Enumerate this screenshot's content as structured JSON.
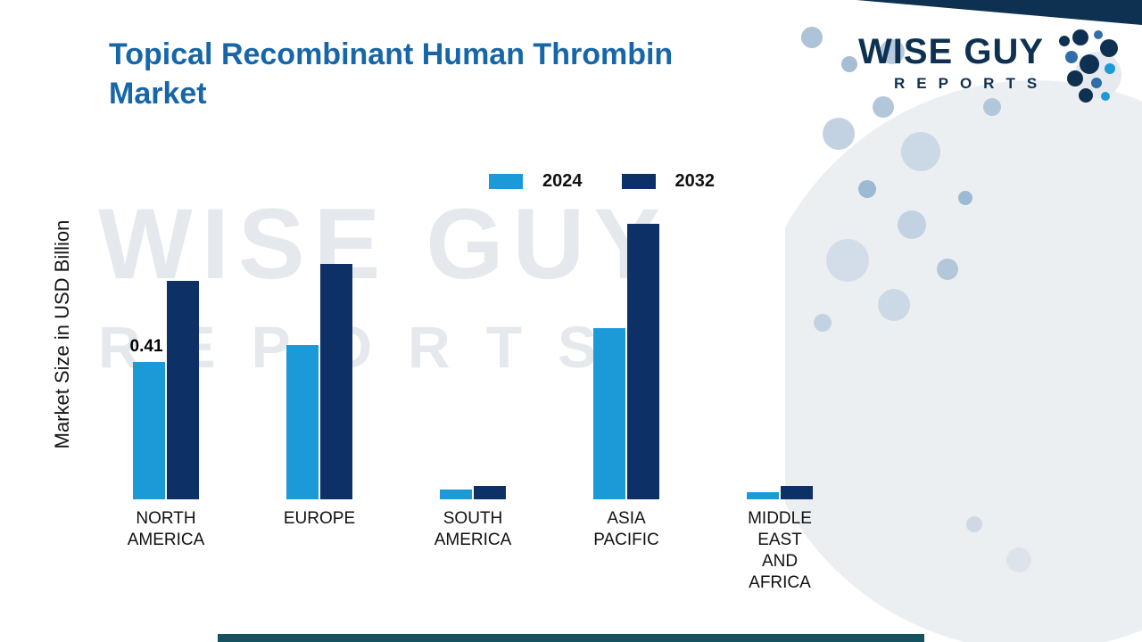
{
  "header": {
    "title": "Topical Recombinant Human Thrombin Market",
    "title_lines": [
      "Topical Recombinant Human Thrombin",
      "Market"
    ]
  },
  "logo": {
    "name": "WISE GUY",
    "tagline": "REPORTS"
  },
  "watermark": {
    "line1": "WISE GUY",
    "line2": "REPORTS"
  },
  "colors": {
    "title_blue": "#1666a8",
    "brand_navy": "#0e3152",
    "series_2024": "#1b9ad7",
    "series_2032": "#0d3066",
    "footer_teal": "#14525f",
    "watermark_gray": "#cdd3da"
  },
  "chart_data": {
    "type": "bar",
    "title": "Topical Recombinant Human Thrombin Market",
    "xlabel": "",
    "ylabel": "Market Size in USD Billion",
    "unit": "USD Billion",
    "categories": [
      "NORTH AMERICA",
      "EUROPE",
      "SOUTH AMERICA",
      "ASIA PACIFIC",
      "MIDDLE EAST AND AFRICA"
    ],
    "category_label_lines": [
      [
        "NORTH",
        "AMERICA"
      ],
      [
        "EUROPE"
      ],
      [
        "SOUTH",
        "AMERICA"
      ],
      [
        "ASIA",
        "PACIFIC"
      ],
      [
        "MIDDLE",
        "EAST",
        "AND",
        "AFRICA"
      ]
    ],
    "series": [
      {
        "name": "2024",
        "color": "#1b9ad7",
        "values": [
          0.41,
          0.46,
          0.03,
          0.51,
          0.02
        ]
      },
      {
        "name": "2032",
        "color": "#0d3066",
        "values": [
          0.65,
          0.7,
          0.04,
          0.82,
          0.04
        ]
      }
    ],
    "annotations": [
      {
        "category": "NORTH AMERICA",
        "series": "2024",
        "text": "0.41"
      }
    ],
    "ylim": [
      0,
      0.85
    ],
    "grid": false,
    "legend_position": "top-center"
  }
}
